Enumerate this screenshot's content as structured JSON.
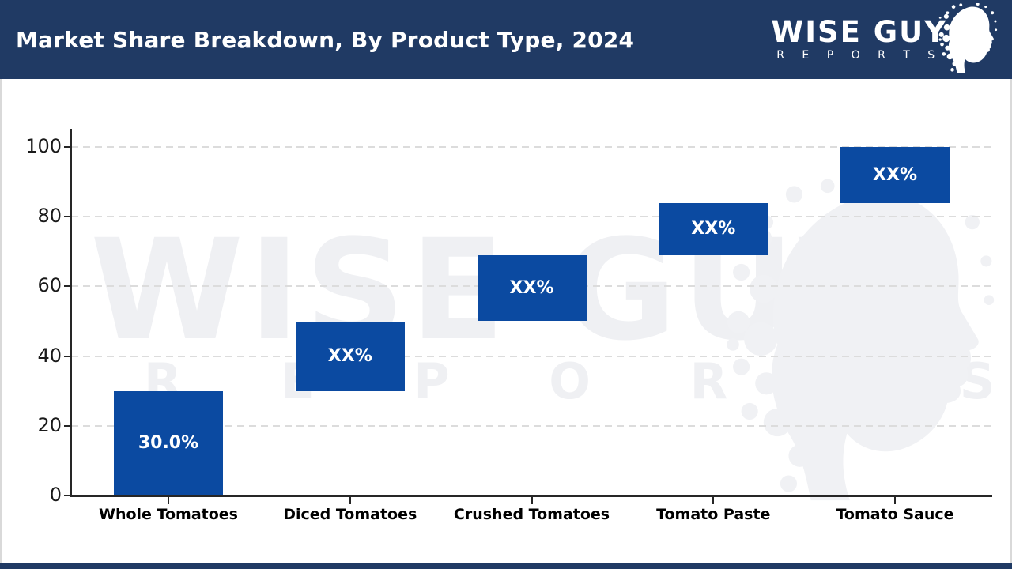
{
  "header": {
    "title": "Market Share Breakdown, By Product Type, 2024",
    "brand": {
      "name": "WISE GUY",
      "sub": "R E P O R T S"
    }
  },
  "watermark": {
    "line1": "WISE GUY",
    "line2": "R E P O R T S"
  },
  "colors": {
    "header_bg": "#203A64",
    "bar_fill": "#0B4AA1",
    "bar_label_text": "#ffffff",
    "axis_line": "#262626",
    "gridline": "#dcdcdc",
    "watermark": "#eff0f3"
  },
  "chart_data": {
    "type": "bar",
    "subtype": "waterfall",
    "title": "Market Share Breakdown, By Product Type, 2024",
    "xlabel": "",
    "ylabel": "",
    "ylim": [
      0,
      100
    ],
    "yticks": [
      0,
      20,
      40,
      60,
      80,
      100
    ],
    "grid": "dashed horizontal",
    "legend": "none",
    "categories": [
      "Whole Tomatoes",
      "Diced Tomatoes",
      "Crushed Tomatoes",
      "Tomato Paste",
      "Tomato Sauce"
    ],
    "segment_values": [
      30,
      20,
      19,
      15,
      16
    ],
    "bars": [
      {
        "category": "Whole Tomatoes",
        "start": 0,
        "end": 30,
        "label": "30.0%"
      },
      {
        "category": "Diced Tomatoes",
        "start": 30,
        "end": 50,
        "label": "XX%"
      },
      {
        "category": "Crushed Tomatoes",
        "start": 50,
        "end": 69,
        "label": "XX%"
      },
      {
        "category": "Tomato Paste",
        "start": 69,
        "end": 84,
        "label": "XX%"
      },
      {
        "category": "Tomato Sauce",
        "start": 84,
        "end": 100,
        "label": "XX%"
      }
    ]
  }
}
